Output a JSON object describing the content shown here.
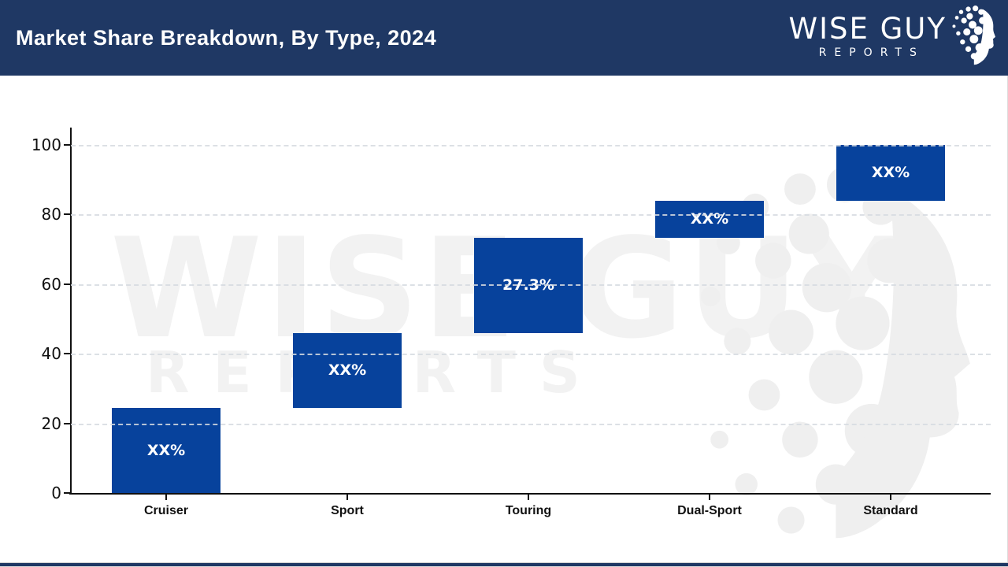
{
  "header": {
    "title": "Market Share Breakdown, By Type, 2024",
    "logo": {
      "line1": "WISE GUY",
      "line2": "REPORTS"
    }
  },
  "watermark": {
    "line1": "WISE GUY",
    "line2": "REPORTS"
  },
  "colors": {
    "header_bg": "#1f3864",
    "bar": "#07429c",
    "gridline": "#d9d9d9",
    "watermark": "#f2f2f2"
  },
  "chart_data": {
    "type": "bar",
    "subtype": "waterfall",
    "title": "Market Share Breakdown, By Type, 2024",
    "xlabel": "",
    "ylabel": "",
    "categories": [
      "Cruiser",
      "Sport",
      "Touring",
      "Dual-Sport",
      "Standard"
    ],
    "segments": [
      {
        "category": "Cruiser",
        "start": 0,
        "end": 24.5,
        "value_label": "XX%"
      },
      {
        "category": "Sport",
        "start": 24.5,
        "end": 46.0,
        "value_label": "XX%"
      },
      {
        "category": "Touring",
        "start": 46.0,
        "end": 73.3,
        "value_label": "27.3%"
      },
      {
        "category": "Dual-Sport",
        "start": 73.3,
        "end": 84.0,
        "value_label": "XX%"
      },
      {
        "category": "Standard",
        "start": 84.0,
        "end": 100.0,
        "value_label": "XX%"
      }
    ],
    "yticks": [
      0,
      20,
      40,
      60,
      80,
      100
    ],
    "ylim": [
      0,
      105
    ],
    "grid": true,
    "grid_style": "dashed",
    "legend": false
  }
}
